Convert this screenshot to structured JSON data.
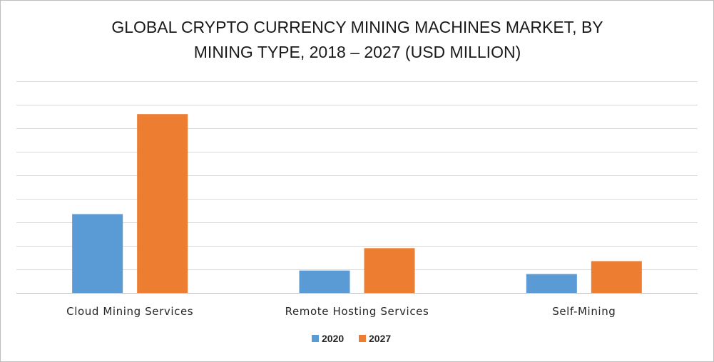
{
  "chart_data": {
    "type": "bar",
    "title_lines": [
      "GLOBAL CRYPTO CURRENCY MINING MACHINES MARKET, BY",
      "MINING TYPE, 2018 – 2027 (USD MILLION)"
    ],
    "categories": [
      "Cloud Mining Services",
      "Remote Hosting Services",
      "Self-Mining"
    ],
    "series": [
      {
        "name": "2020",
        "color": "#5b9bd5",
        "values": [
          33.5,
          9.5,
          8
        ]
      },
      {
        "name": "2027",
        "color": "#ed7d31",
        "values": [
          76,
          19,
          13.5
        ]
      }
    ],
    "ylim": [
      0,
      90
    ],
    "y_gridline_step": 10,
    "y_tick_labels_shown": false,
    "grid": true,
    "legend_position": "bottom-center"
  }
}
